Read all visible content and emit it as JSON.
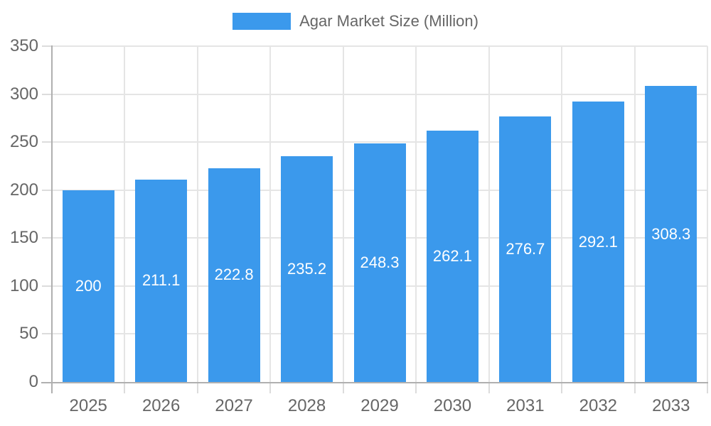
{
  "legend": {
    "label": "Agar Market Size (Million)"
  },
  "colors": {
    "bar": "#3B99EC",
    "grid": "#E5E5E5",
    "tick": "#DCDCDC",
    "axis": "#B0B0B0",
    "text": "#666666",
    "value_label": "#FFFFFF"
  },
  "chart_data": {
    "type": "bar",
    "title": "Agar Market Size (Million)",
    "categories": [
      "2025",
      "2026",
      "2027",
      "2028",
      "2029",
      "2030",
      "2031",
      "2032",
      "2033"
    ],
    "values": [
      200,
      211.1,
      222.8,
      235.2,
      248.3,
      262.1,
      276.7,
      292.1,
      308.3
    ],
    "value_labels": [
      "200",
      "211.1",
      "222.8",
      "235.2",
      "248.3",
      "262.1",
      "276.7",
      "292.1",
      "308.3"
    ],
    "xlabel": "",
    "ylabel": "",
    "ylim": [
      0,
      350
    ],
    "ytick_step": 50,
    "ytick_labels": [
      "0",
      "50",
      "100",
      "150",
      "200",
      "250",
      "300",
      "350"
    ],
    "grid": true,
    "legend_position": "top",
    "value_label_position": "center-of-bar"
  }
}
